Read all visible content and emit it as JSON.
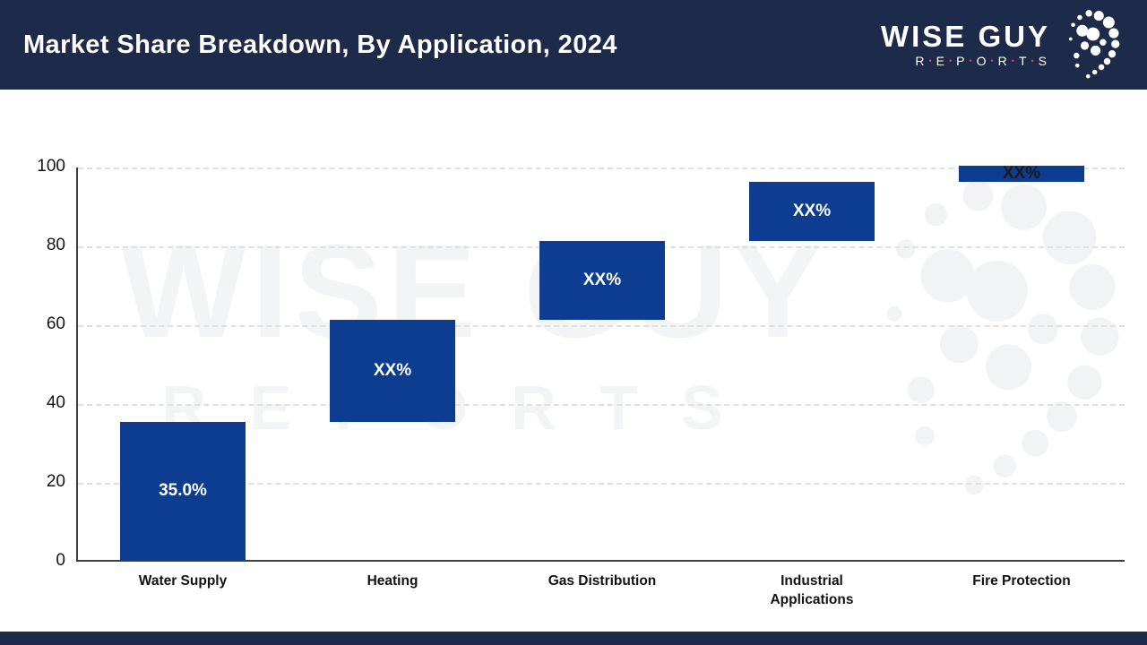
{
  "header": {
    "title": "Market Share Breakdown, By Application, 2024",
    "logo": {
      "line1": "WISE GUY",
      "line2_letters": [
        "R",
        "E",
        "P",
        "O",
        "R",
        "T",
        "S"
      ],
      "accent": "#e8425a"
    }
  },
  "watermark": {
    "line1": "WISE GUY",
    "line2": "REPORTS"
  },
  "chart_data": {
    "type": "bar",
    "subtype": "waterfall",
    "title": "Market Share Breakdown, By Application, 2024",
    "categories": [
      "Water Supply",
      "Heating",
      "Gas Distribution",
      "Industrial Applications",
      "Fire Protection"
    ],
    "series": [
      {
        "name": "Market Share",
        "starts": [
          0,
          35,
          61,
          81,
          96
        ],
        "ends": [
          35,
          61,
          81,
          96,
          100
        ],
        "values": [
          35,
          26,
          20,
          15,
          4
        ]
      }
    ],
    "labels": [
      "35.0%",
      "XX%",
      "XX%",
      "XX%",
      "XX%"
    ],
    "label_colors": [
      "#ffffff",
      "#ffffff",
      "#ffffff",
      "#ffffff",
      "#1a1a1a"
    ],
    "bar_color": "#0d3d91",
    "xlabel": "",
    "ylabel": "",
    "ylim": [
      0,
      100
    ],
    "yticks": [
      0,
      20,
      40,
      60,
      80,
      100
    ],
    "grid": "dashed horizontal",
    "legend": "none"
  }
}
